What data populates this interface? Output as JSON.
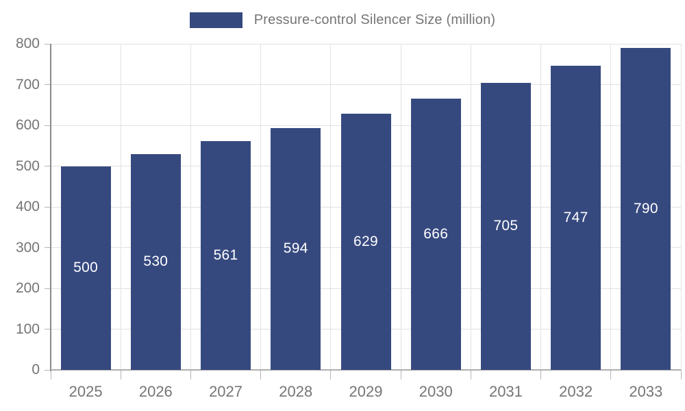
{
  "legend": {
    "label": "Pressure-control Silencer Size (million)"
  },
  "colors": {
    "bar": "#36497f",
    "axis_text": "#757575",
    "grid_horizontal": "#e0e0e0",
    "grid_vertical": "#e2e2e6",
    "y_spine": "#898989",
    "x_axis_line": "#aeaeae",
    "tick": "#b5b5b5",
    "value_label": "#ffffff",
    "background": "#ffffff"
  },
  "chart_data": {
    "type": "bar",
    "title": "",
    "legend": "Pressure-control Silencer Size (million)",
    "categories": [
      "2025",
      "2026",
      "2027",
      "2028",
      "2029",
      "2030",
      "2031",
      "2032",
      "2033"
    ],
    "values": [
      500,
      530,
      561,
      594,
      629,
      666,
      705,
      747,
      790
    ],
    "xlabel": "",
    "ylabel": "",
    "ylim": [
      0,
      800
    ],
    "yticks": [
      0,
      100,
      200,
      300,
      400,
      500,
      600,
      700,
      800
    ],
    "grid": true,
    "legend_position": "top-center",
    "value_label_position": "inside-center"
  }
}
